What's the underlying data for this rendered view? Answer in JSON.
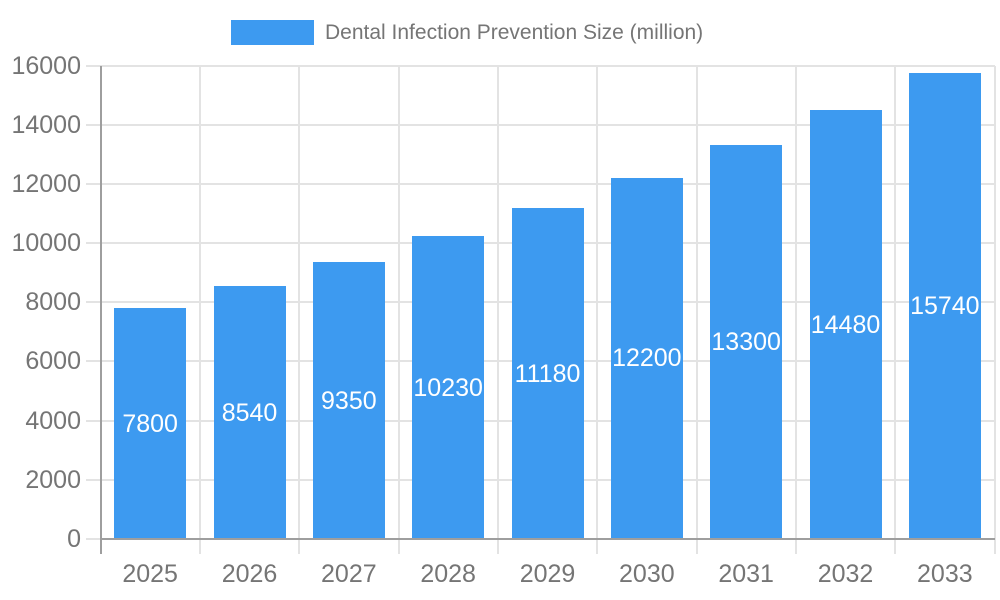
{
  "legend": {
    "label": "Dental Infection Prevention Size (million)",
    "swatch_color": "#3D9AF0"
  },
  "chart_data": {
    "type": "bar",
    "title": "Dental Infection Prevention Size (million)",
    "categories": [
      "2025",
      "2026",
      "2027",
      "2028",
      "2029",
      "2030",
      "2031",
      "2032",
      "2033"
    ],
    "values": [
      7800,
      8540,
      9350,
      10230,
      11180,
      12200,
      13300,
      14480,
      15740
    ],
    "series": [
      {
        "name": "Dental Infection Prevention Size (million)",
        "values": [
          7800,
          8540,
          9350,
          10230,
          11180,
          12200,
          13300,
          14480,
          15740
        ]
      }
    ],
    "xlabel": "",
    "ylabel": "",
    "ylim": [
      0,
      16000
    ],
    "ytick_step": 2000,
    "ytick_labels": [
      "0",
      "2000",
      "4000",
      "6000",
      "8000",
      "10000",
      "12000",
      "14000",
      "16000"
    ],
    "grid": "both",
    "legend_position": "top-center",
    "bar_labels_visible": true,
    "bar_label_position": "center-inside",
    "colors": {
      "bar": "#3D9AF0",
      "bar_label": "#FFFFFF",
      "axis_text": "#757575",
      "axis_line": "#9E9E9E",
      "gridline": "#E3E3E3",
      "background": "#FFFFFF"
    }
  }
}
